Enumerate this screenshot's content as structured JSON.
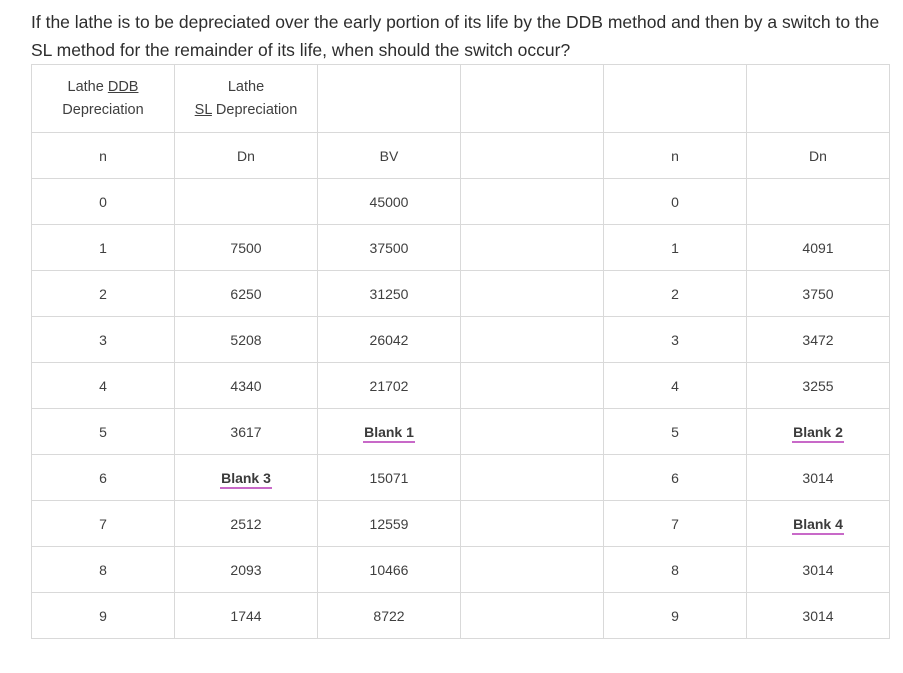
{
  "question": "If the lathe is to be depreciated over the early portion of its life by the DDB method and then by a switch to the SL method for the remainder of its life, when should the switch occur?",
  "table": {
    "group_headers": {
      "ddb": {
        "line1_text": "Lathe ",
        "line1_underlined": "DDB",
        "line2_text": "Depreciation"
      },
      "sl": {
        "line1_text": "Lathe",
        "line2_underlined": "SL",
        "line2_text": " Depreciation"
      }
    },
    "columns": [
      "n",
      "Dn",
      "BV",
      "",
      "n",
      "Dn"
    ],
    "rows": [
      [
        "0",
        "",
        "45000",
        "",
        "0",
        ""
      ],
      [
        "1",
        "7500",
        "37500",
        "",
        "1",
        "4091"
      ],
      [
        "2",
        "6250",
        "31250",
        "",
        "2",
        "3750"
      ],
      [
        "3",
        "5208",
        "26042",
        "",
        "3",
        "3472"
      ],
      [
        "4",
        "4340",
        "21702",
        "",
        "4",
        "3255"
      ],
      [
        "5",
        "3617",
        {
          "t": "Blank 1",
          "blank": true
        },
        "",
        "5",
        {
          "t": "Blank 2",
          "blank": true
        }
      ],
      [
        "6",
        {
          "t": "Blank 3",
          "blank": true
        },
        "15071",
        "",
        "6",
        "3014"
      ],
      [
        "7",
        "2512",
        "12559",
        "",
        "7",
        {
          "t": "Blank 4",
          "blank": true
        }
      ],
      [
        "8",
        "2093",
        "10466",
        "",
        "8",
        "3014"
      ],
      [
        "9",
        "1744",
        "8722",
        "",
        "9",
        "3014"
      ]
    ]
  },
  "colors": {
    "blank_underline": "#c869c8",
    "table_border": "#d9d9d9",
    "text": "#3f3f3f"
  }
}
